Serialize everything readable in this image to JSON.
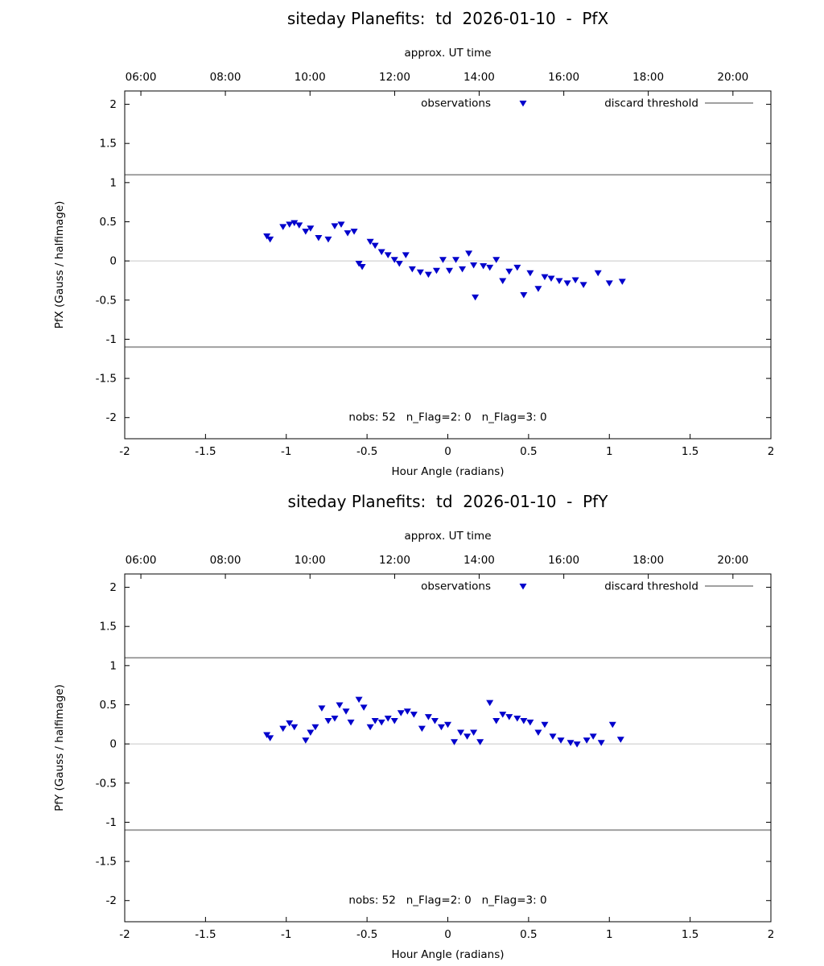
{
  "page": {
    "background": "#ffffff"
  },
  "chart_data": [
    {
      "type": "scatter",
      "title": "siteday Planefits:  td  2026-01-10  -  PfX",
      "top_axis_label": "approx. UT time",
      "xlabel": "Hour Angle (radians)",
      "ylabel": "PfX (Gauss / halfimage)",
      "annotation": "nobs: 52   n_Flag=2: 0   n_Flag=3: 0",
      "nobs": 52,
      "n_flag_2": 0,
      "n_flag_3": 0,
      "xlim": [
        -2,
        2
      ],
      "ylim": [
        -2.27,
        2.17
      ],
      "x_ticks": [
        {
          "v": -2,
          "label": "-2"
        },
        {
          "v": -1.5,
          "label": "-1.5"
        },
        {
          "v": -1,
          "label": "-1"
        },
        {
          "v": -0.5,
          "label": "-0.5"
        },
        {
          "v": 0,
          "label": "0"
        },
        {
          "v": 0.5,
          "label": "0.5"
        },
        {
          "v": 1,
          "label": "1"
        },
        {
          "v": 1.5,
          "label": "1.5"
        },
        {
          "v": 2,
          "label": "2"
        }
      ],
      "y_ticks": [
        {
          "v": 2,
          "label": "2"
        },
        {
          "v": 1.5,
          "label": "1.5"
        },
        {
          "v": 1,
          "label": "1"
        },
        {
          "v": 0.5,
          "label": "0.5"
        },
        {
          "v": 0,
          "label": "0"
        },
        {
          "v": -0.5,
          "label": "-0.5"
        },
        {
          "v": -1,
          "label": "-1"
        },
        {
          "v": -1.5,
          "label": "-1.5"
        },
        {
          "v": -2,
          "label": "-2"
        }
      ],
      "time_ticks": [
        {
          "label": "06:00",
          "ha": -1.9
        },
        {
          "label": "08:00",
          "ha": -1.377
        },
        {
          "label": "10:00",
          "ha": -0.853
        },
        {
          "label": "12:00",
          "ha": -0.329
        },
        {
          "label": "14:00",
          "ha": 0.194
        },
        {
          "label": "16:00",
          "ha": 0.718
        },
        {
          "label": "18:00",
          "ha": 1.241
        },
        {
          "label": "20:00",
          "ha": 1.765
        }
      ],
      "discard_threshold": 1.1,
      "zero_line": 0,
      "legend": {
        "position": "top-right-inside",
        "entries": [
          {
            "label": "observations",
            "marker": "triangle-down",
            "color": "#0000cc"
          },
          {
            "label": "discard threshold",
            "marker": "line",
            "color": "#a0a0a0"
          }
        ]
      },
      "colors": {
        "marker": "#0000cc",
        "threshold": "#a0a0a0",
        "zero_line": "#c8c8c8",
        "border": "#000000",
        "text": "#000000"
      },
      "series": [
        {
          "name": "observations",
          "marker": "triangle-down",
          "color": "#0000cc",
          "points": [
            [
              -1.12,
              0.32
            ],
            [
              -1.1,
              0.28
            ],
            [
              -1.02,
              0.44
            ],
            [
              -0.98,
              0.47
            ],
            [
              -0.95,
              0.49
            ],
            [
              -0.92,
              0.46
            ],
            [
              -0.88,
              0.38
            ],
            [
              -0.85,
              0.42
            ],
            [
              -0.8,
              0.3
            ],
            [
              -0.74,
              0.28
            ],
            [
              -0.7,
              0.45
            ],
            [
              -0.66,
              0.47
            ],
            [
              -0.62,
              0.36
            ],
            [
              -0.58,
              0.38
            ],
            [
              -0.55,
              -0.03
            ],
            [
              -0.53,
              -0.07
            ],
            [
              -0.48,
              0.25
            ],
            [
              -0.45,
              0.2
            ],
            [
              -0.41,
              0.12
            ],
            [
              -0.37,
              0.08
            ],
            [
              -0.33,
              0.02
            ],
            [
              -0.3,
              -0.03
            ],
            [
              -0.26,
              0.08
            ],
            [
              -0.22,
              -0.1
            ],
            [
              -0.17,
              -0.14
            ],
            [
              -0.12,
              -0.17
            ],
            [
              -0.07,
              -0.12
            ],
            [
              -0.03,
              0.02
            ],
            [
              0.01,
              -0.12
            ],
            [
              0.05,
              0.02
            ],
            [
              0.09,
              -0.1
            ],
            [
              0.13,
              0.1
            ],
            [
              0.16,
              -0.05
            ],
            [
              0.17,
              -0.46
            ],
            [
              0.22,
              -0.06
            ],
            [
              0.26,
              -0.08
            ],
            [
              0.3,
              0.02
            ],
            [
              0.34,
              -0.25
            ],
            [
              0.38,
              -0.13
            ],
            [
              0.43,
              -0.08
            ],
            [
              0.47,
              -0.43
            ],
            [
              0.51,
              -0.15
            ],
            [
              0.56,
              -0.35
            ],
            [
              0.6,
              -0.2
            ],
            [
              0.64,
              -0.22
            ],
            [
              0.69,
              -0.25
            ],
            [
              0.74,
              -0.28
            ],
            [
              0.79,
              -0.24
            ],
            [
              0.84,
              -0.3
            ],
            [
              0.93,
              -0.15
            ],
            [
              1.0,
              -0.28
            ],
            [
              1.08,
              -0.26
            ]
          ]
        }
      ]
    },
    {
      "type": "scatter",
      "title": "siteday Planefits:  td  2026-01-10  -  PfY",
      "top_axis_label": "approx. UT time",
      "xlabel": "Hour Angle (radians)",
      "ylabel": "PfY (Gauss / halfimage)",
      "annotation": "nobs: 52   n_Flag=2: 0   n_Flag=3: 0",
      "nobs": 52,
      "n_flag_2": 0,
      "n_flag_3": 0,
      "xlim": [
        -2,
        2
      ],
      "ylim": [
        -2.27,
        2.17
      ],
      "x_ticks": [
        {
          "v": -2,
          "label": "-2"
        },
        {
          "v": -1.5,
          "label": "-1.5"
        },
        {
          "v": -1,
          "label": "-1"
        },
        {
          "v": -0.5,
          "label": "-0.5"
        },
        {
          "v": 0,
          "label": "0"
        },
        {
          "v": 0.5,
          "label": "0.5"
        },
        {
          "v": 1,
          "label": "1"
        },
        {
          "v": 1.5,
          "label": "1.5"
        },
        {
          "v": 2,
          "label": "2"
        }
      ],
      "y_ticks": [
        {
          "v": 2,
          "label": "2"
        },
        {
          "v": 1.5,
          "label": "1.5"
        },
        {
          "v": 1,
          "label": "1"
        },
        {
          "v": 0.5,
          "label": "0.5"
        },
        {
          "v": 0,
          "label": "0"
        },
        {
          "v": -0.5,
          "label": "-0.5"
        },
        {
          "v": -1,
          "label": "-1"
        },
        {
          "v": -1.5,
          "label": "-1.5"
        },
        {
          "v": -2,
          "label": "-2"
        }
      ],
      "time_ticks": [
        {
          "label": "06:00",
          "ha": -1.9
        },
        {
          "label": "08:00",
          "ha": -1.377
        },
        {
          "label": "10:00",
          "ha": -0.853
        },
        {
          "label": "12:00",
          "ha": -0.329
        },
        {
          "label": "14:00",
          "ha": 0.194
        },
        {
          "label": "16:00",
          "ha": 0.718
        },
        {
          "label": "18:00",
          "ha": 1.241
        },
        {
          "label": "20:00",
          "ha": 1.765
        }
      ],
      "discard_threshold": 1.1,
      "zero_line": 0,
      "legend": {
        "position": "top-right-inside",
        "entries": [
          {
            "label": "observations",
            "marker": "triangle-down",
            "color": "#0000cc"
          },
          {
            "label": "discard threshold",
            "marker": "line",
            "color": "#a0a0a0"
          }
        ]
      },
      "colors": {
        "marker": "#0000cc",
        "threshold": "#a0a0a0",
        "zero_line": "#c8c8c8",
        "border": "#000000",
        "text": "#000000"
      },
      "series": [
        {
          "name": "observations",
          "marker": "triangle-down",
          "color": "#0000cc",
          "points": [
            [
              -1.12,
              0.12
            ],
            [
              -1.1,
              0.08
            ],
            [
              -1.02,
              0.2
            ],
            [
              -0.98,
              0.27
            ],
            [
              -0.95,
              0.22
            ],
            [
              -0.88,
              0.05
            ],
            [
              -0.85,
              0.15
            ],
            [
              -0.82,
              0.22
            ],
            [
              -0.78,
              0.46
            ],
            [
              -0.74,
              0.3
            ],
            [
              -0.7,
              0.33
            ],
            [
              -0.67,
              0.5
            ],
            [
              -0.63,
              0.42
            ],
            [
              -0.6,
              0.28
            ],
            [
              -0.55,
              0.57
            ],
            [
              -0.52,
              0.47
            ],
            [
              -0.48,
              0.22
            ],
            [
              -0.45,
              0.3
            ],
            [
              -0.41,
              0.28
            ],
            [
              -0.37,
              0.33
            ],
            [
              -0.33,
              0.3
            ],
            [
              -0.29,
              0.4
            ],
            [
              -0.25,
              0.42
            ],
            [
              -0.21,
              0.38
            ],
            [
              -0.16,
              0.2
            ],
            [
              -0.12,
              0.35
            ],
            [
              -0.08,
              0.3
            ],
            [
              -0.04,
              0.22
            ],
            [
              0.0,
              0.25
            ],
            [
              0.04,
              0.03
            ],
            [
              0.08,
              0.15
            ],
            [
              0.12,
              0.1
            ],
            [
              0.16,
              0.15
            ],
            [
              0.2,
              0.03
            ],
            [
              0.26,
              0.53
            ],
            [
              0.3,
              0.3
            ],
            [
              0.34,
              0.38
            ],
            [
              0.38,
              0.35
            ],
            [
              0.43,
              0.33
            ],
            [
              0.47,
              0.3
            ],
            [
              0.51,
              0.28
            ],
            [
              0.56,
              0.15
            ],
            [
              0.6,
              0.25
            ],
            [
              0.65,
              0.1
            ],
            [
              0.7,
              0.05
            ],
            [
              0.76,
              0.02
            ],
            [
              0.8,
              0.0
            ],
            [
              0.86,
              0.05
            ],
            [
              0.9,
              0.1
            ],
            [
              0.95,
              0.02
            ],
            [
              1.02,
              0.25
            ],
            [
              1.07,
              0.06
            ]
          ]
        }
      ]
    }
  ]
}
